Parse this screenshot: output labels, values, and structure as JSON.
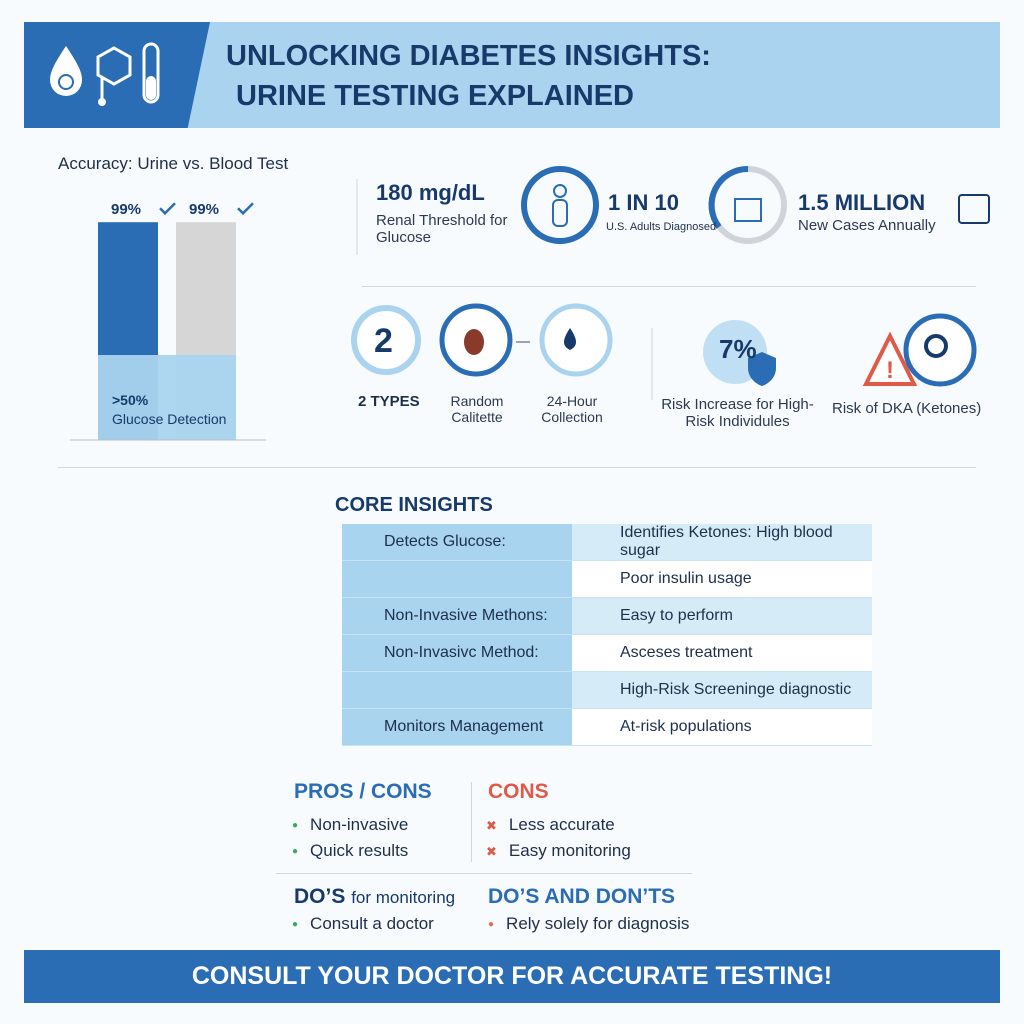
{
  "header": {
    "title_line1": "UNLOCKING DIABETES INSIGHTS:",
    "title_line2": "URINE TESTING EXPLAINED"
  },
  "accuracy_chart": {
    "title": "Accuracy: Urine vs. Blood Test",
    "values": [
      99,
      99
    ],
    "value_labels": [
      "99%",
      "99%"
    ],
    "ylim": [
      0,
      100
    ],
    "colors": [
      "#2a6db5",
      "#d6d6d6"
    ],
    "overlay_value": ">50%",
    "overlay_label": "Glucose Detection"
  },
  "stats": [
    {
      "value": "180 mg/dL",
      "label": "Renal Threshold for Glucose"
    },
    {
      "value": "1 IN 10",
      "label": "U.S. Adults Diagnosed"
    },
    {
      "value": "1.5 MILLION",
      "label": "New Cases Annually"
    }
  ],
  "types": {
    "number": "2",
    "label": "2 TYPES",
    "items": [
      "Random Calitette",
      "24-Hour Collection"
    ]
  },
  "risks": [
    {
      "value": "7%",
      "label": "Risk Increase for High-Risk Individules"
    },
    {
      "label": "Risk of DKA (Ketones)"
    }
  ],
  "core_insights": {
    "title": "CORE INSIGHTS",
    "rows": [
      {
        "left": "Detects Glucose:",
        "right": "Identifies Ketones: High blood sugar"
      },
      {
        "right": "Poor insulin usage"
      },
      {
        "left": "Non-Invasive Methons:",
        "right": "Easy to perform"
      },
      {
        "left": "Non-Invasivc Method:",
        "right": "Asceses treatment"
      },
      {
        "right": "High-Risk Screeninge diagnostic"
      },
      {
        "left": "Monitors Management",
        "right": "At-risk populations"
      }
    ]
  },
  "pros": {
    "title": "PROS / CONS",
    "items": [
      "Non-invasive",
      "Quick results"
    ]
  },
  "cons": {
    "title": "CONS",
    "items": [
      "Less accurate",
      "Easy monitoring"
    ]
  },
  "dos": {
    "title": "DO’S",
    "title_suffix": "for monitoring",
    "items": [
      "Consult a doctor"
    ]
  },
  "donts": {
    "title": "DO’S AND DON’TS",
    "items": [
      "Rely solely for diagnosis"
    ]
  },
  "footer": "CONSULT YOUR DOCTOR FOR ACCURATE TESTING!"
}
